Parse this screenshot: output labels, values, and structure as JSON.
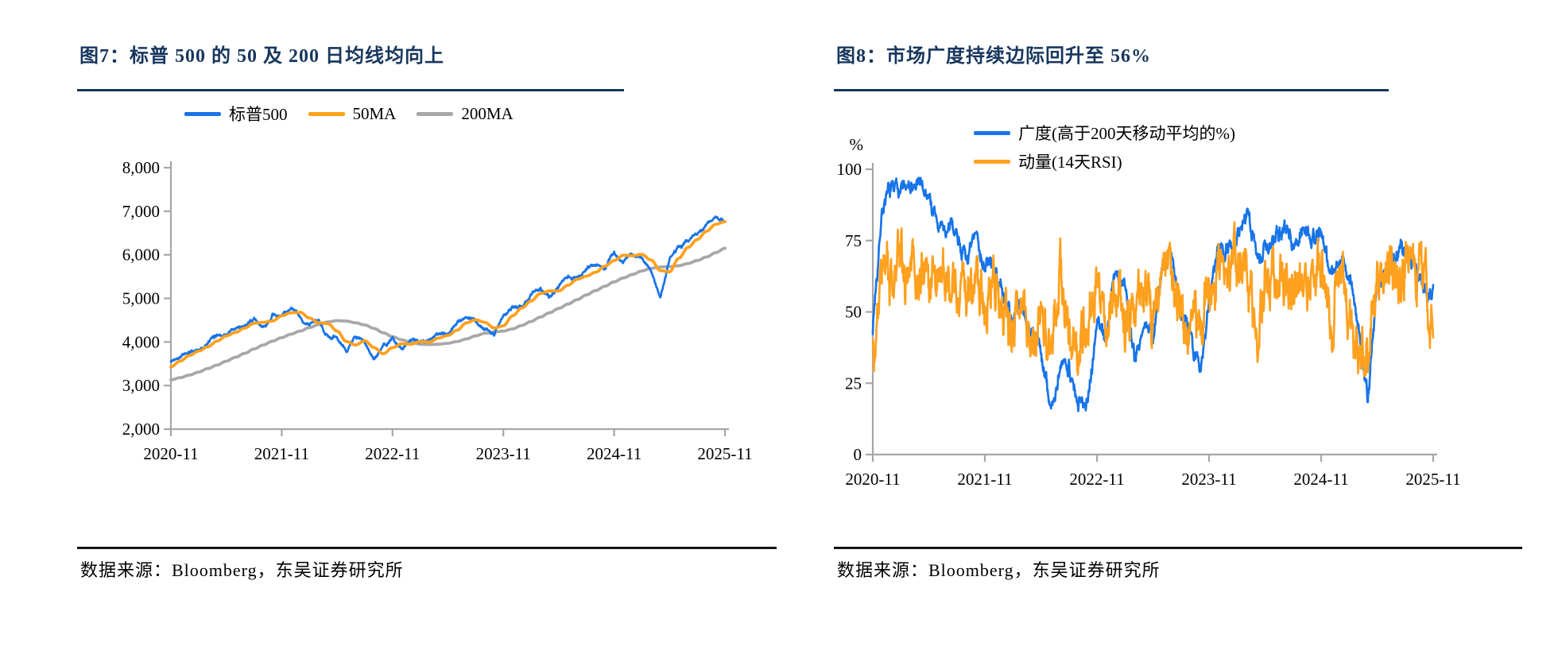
{
  "figures": [
    {
      "title": "图7：标普 500 的 50 及 200 日均线均向上",
      "source": "数据来源：Bloomberg，东吴证券研究所"
    },
    {
      "title": "图8：市场广度持续边际回升至 56%",
      "source": "数据来源：Bloomberg，东吴证券研究所"
    }
  ],
  "colors": {
    "title_navy": "#17365D",
    "axis_gray": "#A6A6A6",
    "blue": "#1874E8",
    "orange": "#FFA01E",
    "gray": "#A8A8A8",
    "text_black": "#000000"
  },
  "chart_data": [
    {
      "type": "line",
      "title": "图7：标普 500 的 50 及 200 日均线均向上",
      "x_interval": "monthly",
      "x_start": "2020-11",
      "x_end": "2025-11",
      "x_tick_labels": [
        "2020-11",
        "2021-11",
        "2022-11",
        "2023-11",
        "2024-11",
        "2025-11"
      ],
      "ylim": [
        2000,
        8000
      ],
      "y_tick_labels": [
        "2,000",
        "3,000",
        "4,000",
        "5,000",
        "6,000",
        "7,000",
        "8,000"
      ],
      "grid": false,
      "legend_position": "top-center",
      "series": [
        {
          "name": "标普500",
          "color": "#1874E8",
          "style": "noisy-daily",
          "values": [
            3540,
            3700,
            3750,
            3830,
            3960,
            4170,
            4200,
            4290,
            4400,
            4520,
            4320,
            4600,
            4570,
            4770,
            4520,
            4370,
            4540,
            4130,
            4110,
            3790,
            4130,
            3960,
            3590,
            3870,
            4080,
            3840,
            4080,
            3970,
            4110,
            4170,
            4180,
            4450,
            4590,
            4510,
            4290,
            4190,
            4570,
            4770,
            4850,
            5100,
            5250,
            5040,
            5280,
            5460,
            5520,
            5650,
            5760,
            5710,
            6030,
            5880,
            6040,
            5960,
            5610,
            5000,
            5910,
            6200,
            6340,
            6460,
            6690,
            6840,
            6730
          ]
        },
        {
          "name": "50MA",
          "color": "#FFA01E",
          "style": "smooth",
          "values": [
            3430,
            3560,
            3690,
            3790,
            3890,
            4020,
            4140,
            4220,
            4320,
            4430,
            4450,
            4480,
            4600,
            4670,
            4680,
            4550,
            4440,
            4420,
            4250,
            4010,
            3930,
            4030,
            3870,
            3730,
            3870,
            3960,
            3950,
            4010,
            4000,
            4090,
            4150,
            4270,
            4440,
            4510,
            4450,
            4320,
            4370,
            4600,
            4780,
            4940,
            5110,
            5170,
            5170,
            5300,
            5440,
            5510,
            5600,
            5740,
            5870,
            5990,
            5980,
            6010,
            5880,
            5640,
            5610,
            5920,
            6170,
            6350,
            6540,
            6700,
            6760
          ]
        },
        {
          "name": "200MA",
          "color": "#A8A8A8",
          "style": "smooth",
          "values": [
            3130,
            3180,
            3240,
            3310,
            3390,
            3470,
            3560,
            3650,
            3740,
            3840,
            3930,
            4020,
            4100,
            4180,
            4250,
            4330,
            4400,
            4460,
            4490,
            4480,
            4440,
            4390,
            4310,
            4210,
            4120,
            4050,
            3990,
            3950,
            3940,
            3950,
            3970,
            4010,
            4070,
            4140,
            4200,
            4230,
            4250,
            4300,
            4380,
            4470,
            4570,
            4670,
            4770,
            4870,
            4970,
            5080,
            5180,
            5280,
            5380,
            5470,
            5550,
            5630,
            5690,
            5720,
            5730,
            5750,
            5800,
            5870,
            5950,
            6050,
            6150
          ]
        }
      ]
    },
    {
      "type": "line",
      "title": "图8：市场广度持续边际回升至 56%",
      "x_interval": "monthly",
      "x_start": "2020-11",
      "x_end": "2025-11",
      "x_tick_labels": [
        "2020-11",
        "2021-11",
        "2022-11",
        "2023-11",
        "2024-11",
        "2025-11"
      ],
      "ylim": [
        0,
        100
      ],
      "y_unit": "%",
      "y_tick_labels": [
        "0",
        "25",
        "50",
        "75",
        "100"
      ],
      "grid": false,
      "legend_position": "top-right",
      "series": [
        {
          "name": "广度(高于200天移动平均的%)",
          "color": "#1874E8",
          "style": "noisy-daily",
          "values": [
            45,
            90,
            91,
            95,
            92,
            93,
            90,
            80,
            77,
            79,
            70,
            74,
            68,
            65,
            55,
            48,
            55,
            45,
            35,
            15,
            25,
            35,
            14,
            22,
            48,
            42,
            65,
            60,
            35,
            48,
            42,
            62,
            72,
            55,
            42,
            28,
            55,
            78,
            75,
            78,
            85,
            70,
            75,
            72,
            80,
            75,
            80,
            78,
            80,
            65,
            70,
            65,
            45,
            20,
            55,
            65,
            70,
            72,
            68,
            60,
            56
          ]
        },
        {
          "name": "动量(14天RSI)",
          "color": "#FFA01E",
          "style": "very-noisy",
          "values": [
            40,
            62,
            60,
            65,
            63,
            66,
            60,
            62,
            58,
            63,
            52,
            62,
            50,
            58,
            48,
            45,
            58,
            42,
            45,
            35,
            60,
            42,
            35,
            52,
            60,
            42,
            62,
            45,
            48,
            55,
            50,
            65,
            63,
            48,
            45,
            38,
            62,
            65,
            60,
            65,
            68,
            45,
            60,
            62,
            58,
            60,
            65,
            58,
            65,
            48,
            58,
            50,
            40,
            35,
            62,
            65,
            62,
            65,
            60,
            68,
            36
          ]
        }
      ]
    }
  ]
}
